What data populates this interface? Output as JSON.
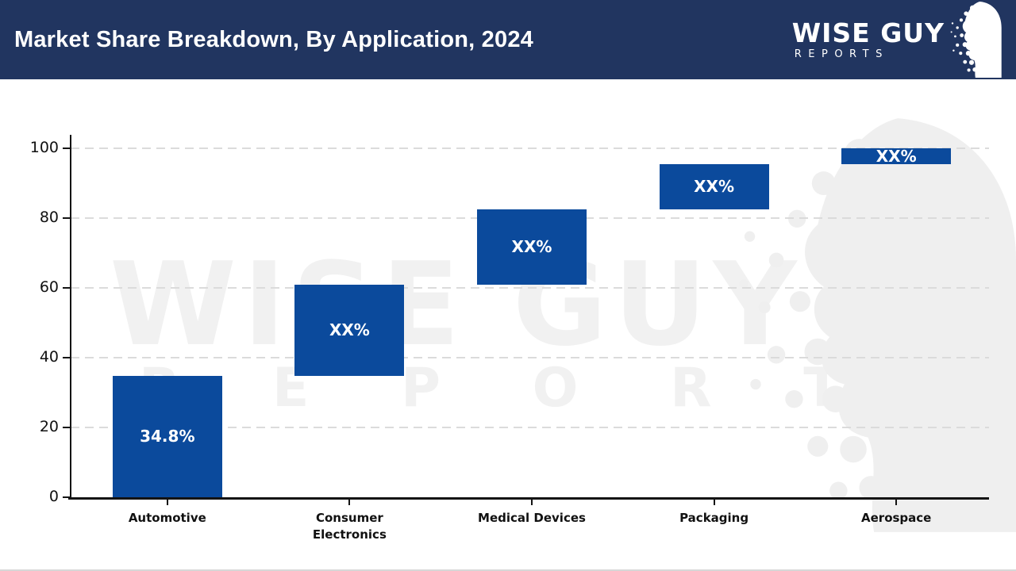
{
  "header": {
    "title": "Market Share Breakdown, By Application, 2024",
    "logo": {
      "line1": "WISE GUY",
      "line2": "REPORTS"
    }
  },
  "watermark": {
    "line1": "WISE GUY",
    "line2": "R E P O R T S"
  },
  "colors": {
    "header_bg": "#213560",
    "bar": "#0b4a9c",
    "bar_label": "#ffffff",
    "grid": "#dbdbdb",
    "axis": "#141414",
    "watermark": "#f1f1f1"
  },
  "chart_data": {
    "type": "bar",
    "variant": "waterfall",
    "title": "Market Share Breakdown, By Application, 2024",
    "xlabel": "",
    "ylabel": "",
    "ylim": [
      0,
      105
    ],
    "yticks": [
      0,
      20,
      40,
      60,
      80,
      100
    ],
    "grid": "horizontal-dashed",
    "legend": "none",
    "categories": [
      "Automotive",
      "Consumer Electronics",
      "Medical Devices",
      "Packaging",
      "Aerospace"
    ],
    "segments": [
      {
        "category": "Automotive",
        "start": 0,
        "end": 34.8,
        "value": 34.8,
        "label": "34.8%"
      },
      {
        "category": "Consumer Electronics",
        "start": 34.8,
        "end": 61.0,
        "value": 26.2,
        "label": "XX%"
      },
      {
        "category": "Medical Devices",
        "start": 61.0,
        "end": 82.6,
        "value": 21.6,
        "label": "XX%"
      },
      {
        "category": "Packaging",
        "start": 82.6,
        "end": 95.4,
        "value": 12.8,
        "label": "XX%"
      },
      {
        "category": "Aerospace",
        "start": 95.4,
        "end": 100.0,
        "value": 4.6,
        "label": "XX%"
      }
    ]
  }
}
